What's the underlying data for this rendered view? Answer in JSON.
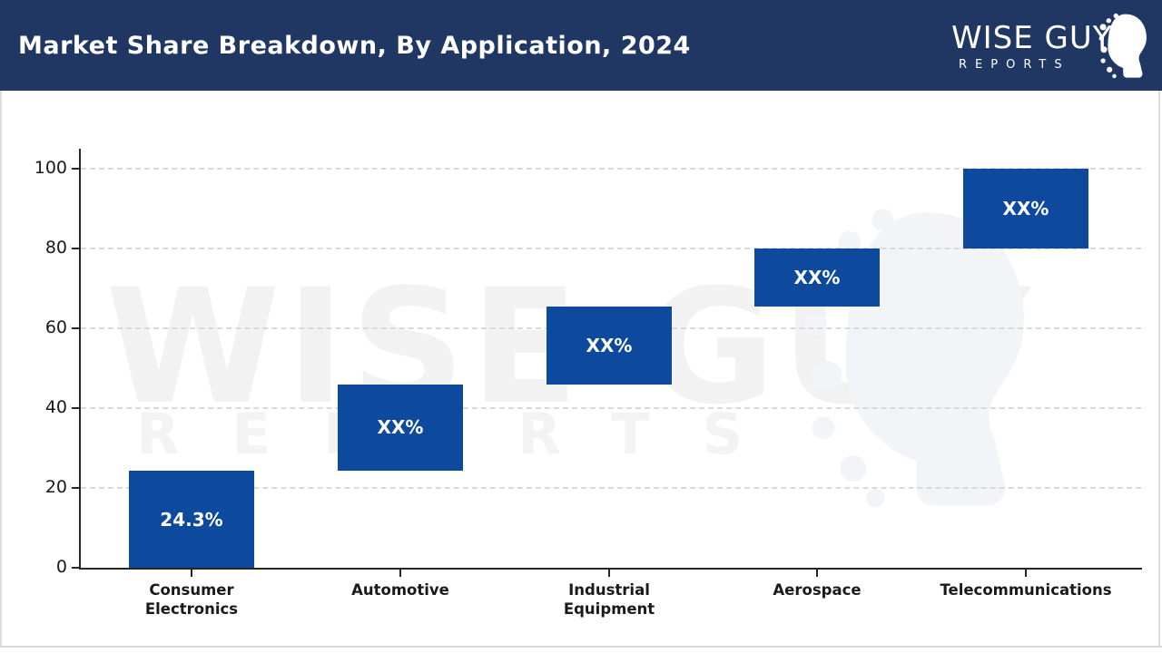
{
  "header": {
    "title": "Market Share Breakdown, By Application, 2024",
    "logo": {
      "line1": "WISE GUY",
      "line2": "REPORTS"
    },
    "bg_color": "#203764"
  },
  "watermark": {
    "line1": "WISE GUY",
    "line2": "REPORTS"
  },
  "chart_data": {
    "type": "bar",
    "subtype": "waterfall",
    "title": "Market Share Breakdown, By Application, 2024",
    "xlabel": "",
    "ylabel": "",
    "categories": [
      "Consumer\nElectronics",
      "Automotive",
      "Industrial\nEquipment",
      "Aerospace",
      "Telecommunications"
    ],
    "bar_labels": [
      "24.3%",
      "XX%",
      "XX%",
      "XX%",
      "XX%"
    ],
    "segments": [
      [
        0,
        24.3
      ],
      [
        24.3,
        46
      ],
      [
        46,
        65.5
      ],
      [
        65.5,
        80
      ],
      [
        80,
        100
      ]
    ],
    "segment_sizes": [
      24.3,
      21.7,
      19.5,
      14.5,
      20
    ],
    "values_masked": true,
    "yticks": [
      0,
      20,
      40,
      60,
      80,
      100
    ],
    "ylim": [
      0,
      105
    ],
    "grid": "horizontal dashed",
    "legend": "none",
    "bar_color": "#0d4a9d"
  }
}
